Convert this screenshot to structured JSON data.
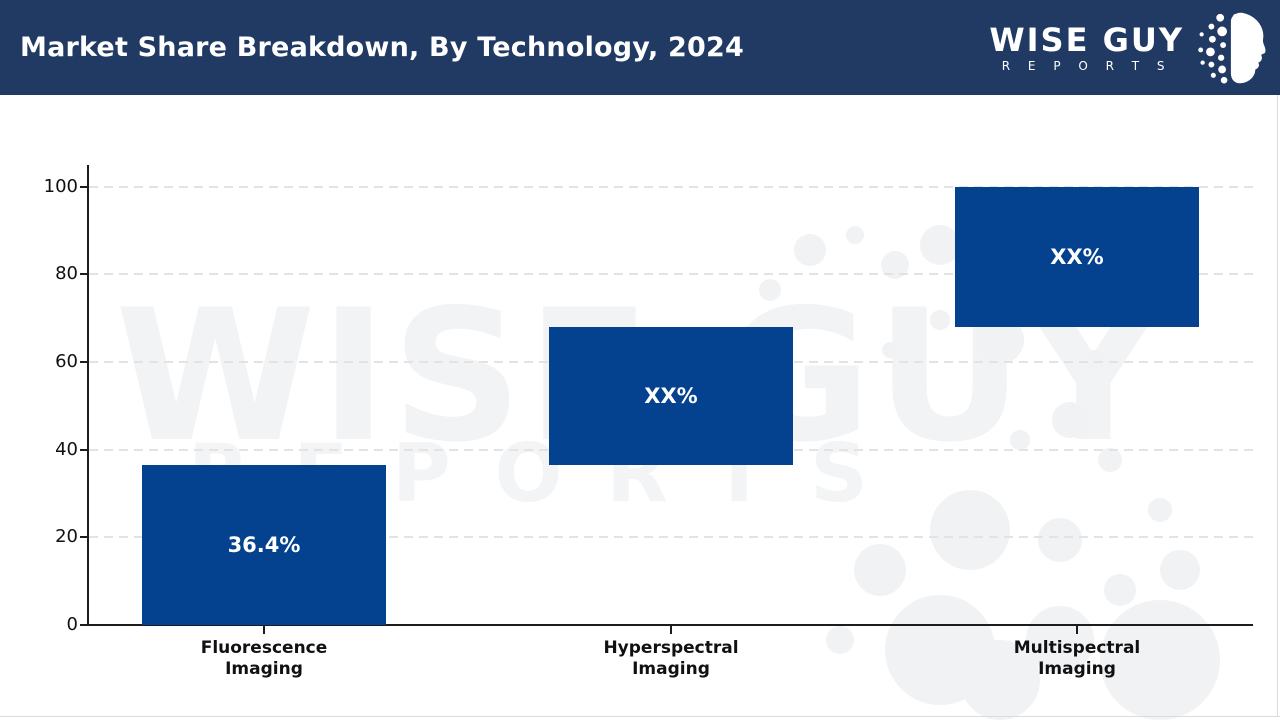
{
  "header": {
    "title": "Market Share Breakdown, By Technology, 2024",
    "bg_color": "#203a64",
    "logo": {
      "line1": "WISE GUY",
      "line2": "R E P O R T S"
    }
  },
  "watermark": {
    "line1": "WISE GUY",
    "line2": "R E P O R T S"
  },
  "chart_data": {
    "type": "bar",
    "variant": "stacked-waterfall",
    "title": "Market Share Breakdown, By Technology, 2024",
    "categories": [
      "Fluorescence Imaging",
      "Hyperspectral Imaging",
      "Multispectral Imaging"
    ],
    "category_lines": [
      [
        "Fluorescence",
        "Imaging"
      ],
      [
        "Hyperspectral",
        "Imaging"
      ],
      [
        "Multispectral",
        "Imaging"
      ]
    ],
    "series": [
      {
        "name": "Fluorescence Imaging",
        "label": "36.4%",
        "start": 0,
        "end": 36.4
      },
      {
        "name": "Hyperspectral Imaging",
        "label": "XX%",
        "start": 36.4,
        "end": 68
      },
      {
        "name": "Multispectral Imaging",
        "label": "XX%",
        "start": 68,
        "end": 100
      }
    ],
    "y_ticks": [
      0,
      20,
      40,
      60,
      80,
      100
    ],
    "ylim": [
      0,
      105
    ],
    "xlabel": "",
    "ylabel": "",
    "grid": "horizontal-dashed",
    "legend": "none",
    "bar_color": "#04428f",
    "bar_label_color": "#ffffff"
  }
}
